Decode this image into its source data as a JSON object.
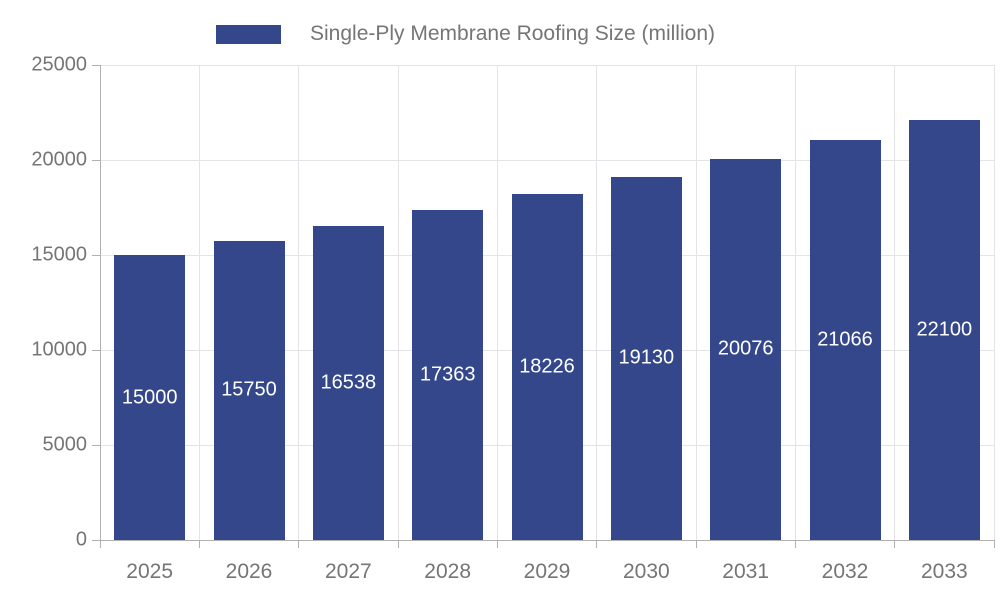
{
  "legend": {
    "label": "Single-Ply Membrane Roofing Size (million)",
    "swatch_color": "#35478b"
  },
  "chart_data": {
    "type": "bar",
    "title": "",
    "xlabel": "",
    "ylabel": "",
    "categories": [
      "2025",
      "2026",
      "2027",
      "2028",
      "2029",
      "2030",
      "2031",
      "2032",
      "2033"
    ],
    "series": [
      {
        "name": "Single-Ply Membrane Roofing Size (million)",
        "values": [
          15000,
          15750,
          16538,
          17363,
          18226,
          19130,
          20076,
          21066,
          22100
        ]
      }
    ],
    "value_labels_shown": true,
    "value_label_position": "center-of-bar",
    "ylim": [
      0,
      25000
    ],
    "y_ticks": [
      0,
      5000,
      10000,
      15000,
      20000,
      25000
    ],
    "grid": true,
    "legend_position": "top",
    "colors": {
      "bar": "#35478b",
      "axis_line": "#b0b0b0",
      "gridline": "#e4e4e8",
      "tick_text": "#757575",
      "value_label_text": "#ffffff",
      "background": "#ffffff"
    }
  }
}
